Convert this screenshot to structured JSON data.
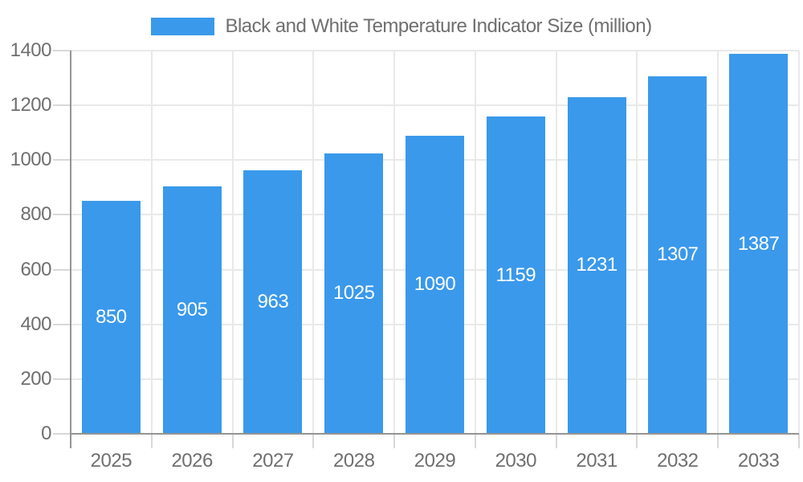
{
  "chart_data": {
    "type": "bar",
    "title": "Black and White Temperature Indicator Size (million)",
    "legend": {
      "position": "top",
      "label": "Black and White Temperature Indicator Size (million)"
    },
    "categories": [
      "2025",
      "2026",
      "2027",
      "2028",
      "2029",
      "2030",
      "2031",
      "2032",
      "2033"
    ],
    "values": [
      850,
      905,
      963,
      1025,
      1090,
      1159,
      1231,
      1307,
      1387
    ],
    "value_labels_shown": true,
    "xlabel": "",
    "ylabel": "",
    "ylim": [
      0,
      1400
    ],
    "yticks": [
      0,
      200,
      400,
      600,
      800,
      1000,
      1200,
      1400
    ],
    "grid": true,
    "colors": {
      "bar": "#3a99eb",
      "axis_text": "#6f6f6f",
      "legend_text": "#6f6f6f",
      "value_text": "#ffffff",
      "gridline": "#e9e9e9",
      "tick": "#d8d8d8",
      "axis_line": "#949494",
      "background": "#ffffff"
    }
  }
}
